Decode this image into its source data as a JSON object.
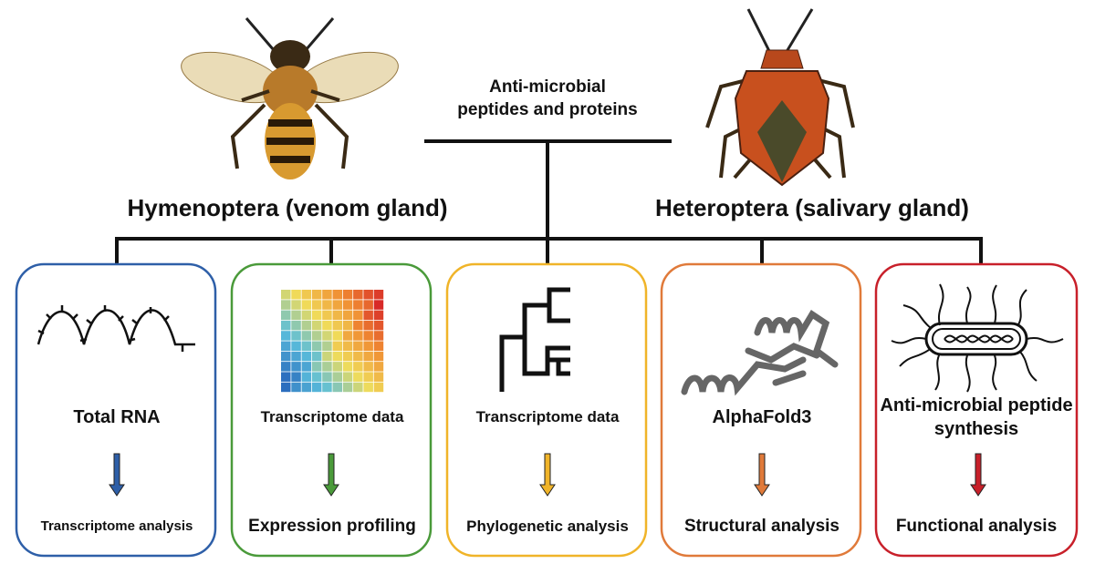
{
  "header": {
    "title": "Anti-microbial peptides and proteins"
  },
  "groups": [
    {
      "label": "Hymenoptera (venom gland)"
    },
    {
      "label": "Heteroptera (salivary gland)"
    }
  ],
  "steps": [
    {
      "input": "Total RNA",
      "output": "Transcriptome analysis"
    },
    {
      "input": "Transcriptome data",
      "output": "Expression profiling"
    },
    {
      "input": "Transcriptome data",
      "output": "Phylogenetic analysis"
    },
    {
      "input": "AlphaFold3",
      "output": "Structural analysis"
    },
    {
      "input": "Anti-microbial peptide synthesis",
      "output": "Functional analysis"
    }
  ]
}
